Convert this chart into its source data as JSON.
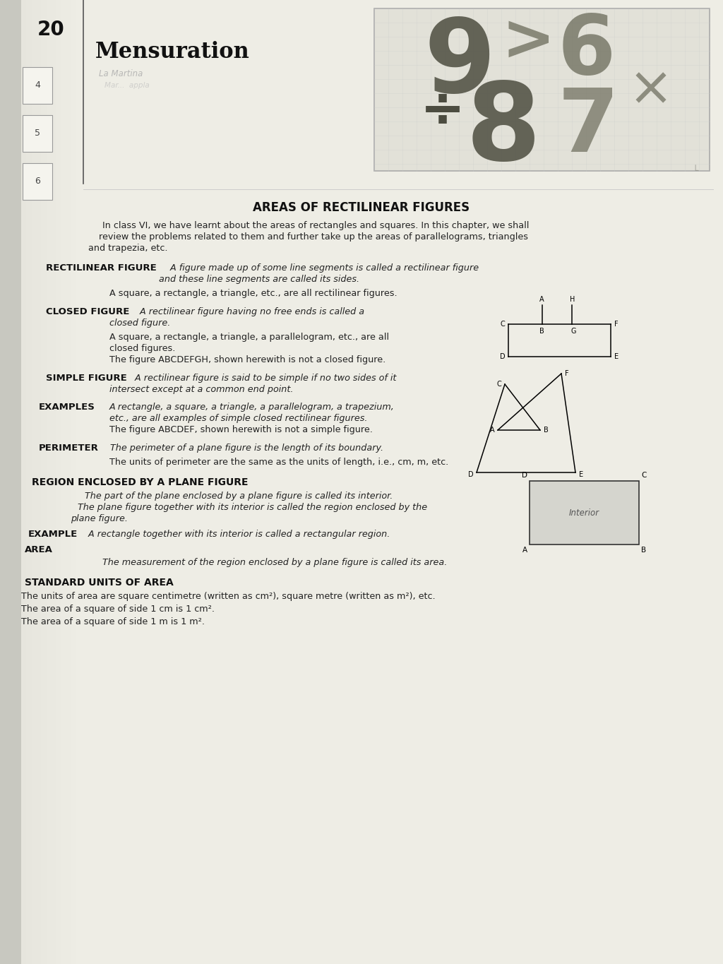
{
  "bg_color": "#c8c8c0",
  "page_bg": "#f0efe8",
  "binding_color": "#d0d0c8",
  "title_chapter": "Mensuration",
  "chapter_num": "20",
  "section_title": "AREAS OF RECTILINEAR FIGURES",
  "intro_line1": "In class VI, we have learnt about the areas of rectangles and squares. In this chapter, we shall",
  "intro_line2": "review the problems related to them and further take up the areas of parallelograms, triangles",
  "intro_line3": "and trapezia, etc.",
  "standard_body1": "The units of area are square centimetre (written as cm²), square metre (written as m²), etc.",
  "standard_body2": "The area of a square of side 1 cm is 1 cm².",
  "standard_body3": "The area of a square of side 1 m is 1 m².",
  "area_body": "The measurement of the region enclosed by a plane figure is called its area.",
  "region_heading": "REGION ENCLOSED BY A PLANE FIGURE",
  "region_line1": "The part of the plane enclosed by a plane figure is called its interior.",
  "region_line2": "The plane figure together with its interior is called the region enclosed by the",
  "region_line3": "plane figure.",
  "region_example": "A rectangle together with its interior is called a rectangular region."
}
